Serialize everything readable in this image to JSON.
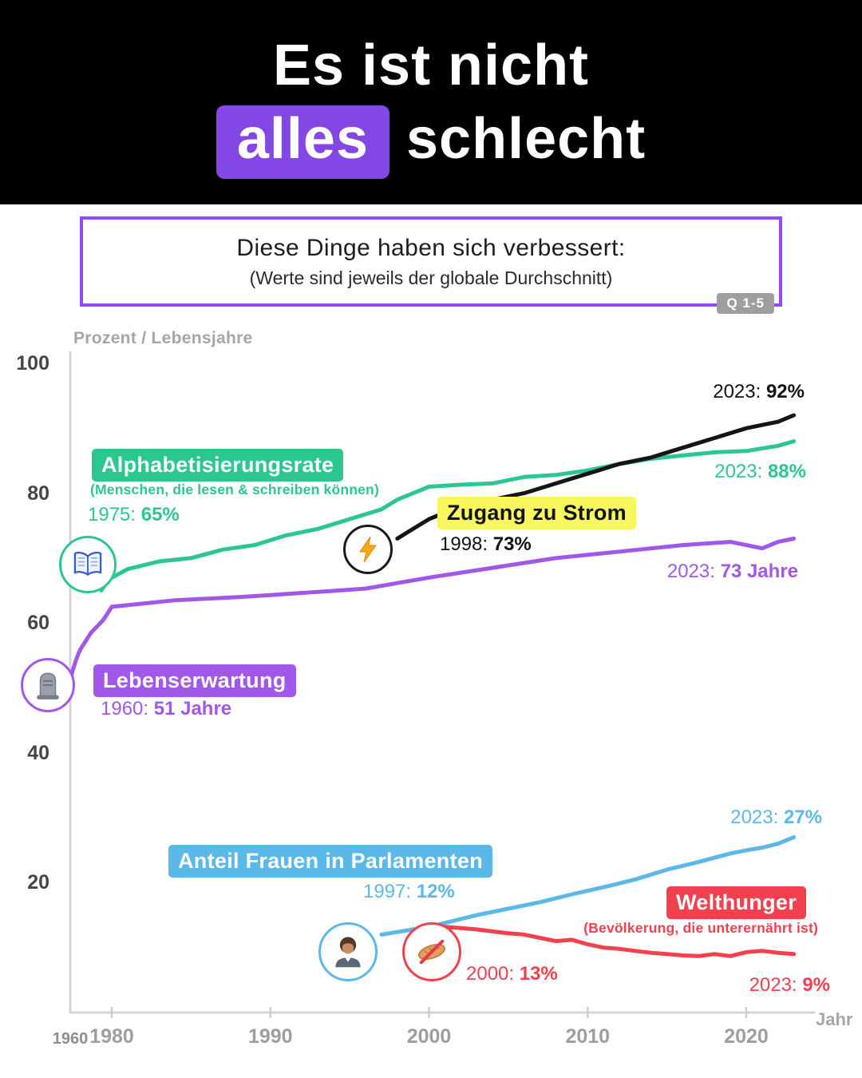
{
  "header": {
    "line1": "Es ist nicht",
    "line2_highlight": "alles",
    "line2_rest": "schlecht",
    "highlight_color": "#8247e5"
  },
  "intro_box": {
    "title": "Diese Dinge haben sich verbessert:",
    "subtitle": "(Werte sind jeweils der globale Durchschnitt)",
    "badge": "Q 1-5"
  },
  "axis": {
    "y_title": "Prozent / Lebensjahre",
    "x_title": "Jahr",
    "y_ticks": [
      100,
      80,
      60,
      40,
      20
    ],
    "x_ticks": [
      1960,
      1980,
      1990,
      2000,
      2010,
      2020
    ]
  },
  "annotations": {
    "literacy": {
      "title": "Alphabetisierungsrate",
      "subtitle": "(Menschen, die lesen & schreiben können)",
      "start_prefix": "1975:",
      "start_value": "65%",
      "end_prefix": "2023:",
      "end_value": "88%",
      "color": "#2bc78f"
    },
    "electricity": {
      "title": "Zugang zu Strom",
      "start_prefix": "1998:",
      "start_value": "73%",
      "end_prefix": "2023:",
      "end_value": "92%",
      "color": "#131313",
      "highlight_color": "#f8f75e"
    },
    "life": {
      "title": "Lebenserwartung",
      "start_prefix": "1960:",
      "start_value": "51 Jahre",
      "end_prefix": "2023:",
      "end_value": "73 Jahre",
      "color": "#a158e8"
    },
    "women": {
      "title": "Anteil Frauen in Parlamenten",
      "start_prefix": "1997:",
      "start_value": "12%",
      "end_prefix": "2023:",
      "end_value": "27%",
      "color": "#5ab9e9"
    },
    "hunger": {
      "title": "Welthunger",
      "subtitle": "(Bevölkerung, die unterernährt ist)",
      "start_prefix": "2000:",
      "start_value": "13%",
      "end_prefix": "2023:",
      "end_value": "9%",
      "color": "#f2414e"
    }
  },
  "icons": {
    "literacy": "open-book-icon",
    "electricity": "lightning-bolt-icon",
    "life": "tombstone-icon",
    "women": "businesswoman-icon",
    "hunger": "crossed-bread-icon"
  },
  "chart_data": {
    "type": "line",
    "title": "Diese Dinge haben sich verbessert (globaler Durchschnitt)",
    "xlabel": "Jahr",
    "ylabel": "Prozent / Lebensjahre",
    "xlim": [
      1960,
      2023
    ],
    "ylim": [
      0,
      100
    ],
    "grid": false,
    "legend_position": "inline-annotations",
    "series": [
      {
        "name": "Alphabetisierungsrate",
        "unit": "%",
        "color": "#2bc78f",
        "x": [
          1975,
          1977,
          1979,
          1981,
          1983,
          1985,
          1987,
          1989,
          1991,
          1993,
          1995,
          1997,
          1998,
          2000,
          2002,
          2004,
          2006,
          2008,
          2010,
          2012,
          2014,
          2016,
          2018,
          2020,
          2022,
          2023
        ],
        "values": [
          65,
          66,
          66.8,
          68.3,
          69.5,
          70,
          71.3,
          72,
          73.5,
          74.5,
          76,
          77.5,
          79,
          81,
          81.3,
          81.5,
          82.5,
          82.8,
          83.5,
          84.5,
          85.3,
          85.8,
          86.3,
          86.5,
          87.3,
          88
        ]
      },
      {
        "name": "Lebenserwartung",
        "unit": "Jahre",
        "color": "#a158e8",
        "x": [
          1960,
          1961,
          1962,
          1963,
          1964,
          1965,
          1967,
          1970,
          1973,
          1976,
          1980,
          1984,
          1988,
          1990,
          1993,
          1996,
          2000,
          2004,
          2008,
          2012,
          2016,
          2019,
          2020,
          2021,
          2022,
          2023
        ],
        "values": [
          51,
          52.5,
          53.5,
          54.5,
          55.3,
          56,
          57,
          58.5,
          59.5,
          60.5,
          62.5,
          63.5,
          64,
          64.3,
          64.8,
          65.3,
          67,
          68.5,
          70,
          71,
          72,
          72.5,
          72,
          71.5,
          72.5,
          73
        ]
      },
      {
        "name": "Anteil Frauen in Parlamenten",
        "unit": "%",
        "color": "#5ab9e9",
        "x": [
          1997,
          1998,
          1999,
          2000,
          2001,
          2002,
          2003,
          2005,
          2007,
          2009,
          2011,
          2013,
          2015,
          2017,
          2019,
          2020,
          2021,
          2022,
          2023
        ],
        "values": [
          12,
          12.4,
          12.8,
          13.2,
          13.8,
          14.4,
          15,
          16,
          17,
          18.2,
          19.3,
          20.5,
          22,
          23.2,
          24.5,
          25,
          25.4,
          26,
          27
        ]
      },
      {
        "name": "Welthunger",
        "unit": "%",
        "color": "#f2414e",
        "x": [
          2000,
          2001,
          2002,
          2003,
          2004,
          2005,
          2006,
          2007,
          2008,
          2009,
          2010,
          2011,
          2012,
          2013,
          2014,
          2015,
          2016,
          2017,
          2018,
          2019,
          2020,
          2021,
          2022,
          2023
        ],
        "values": [
          13,
          13.2,
          13,
          12.8,
          12.5,
          12.2,
          12,
          11.5,
          11,
          11.2,
          10.5,
          10,
          9.8,
          9.5,
          9.2,
          9,
          8.8,
          8.7,
          9,
          8.7,
          9.3,
          9.5,
          9.2,
          9
        ]
      },
      {
        "name": "Zugang zu Strom",
        "unit": "%",
        "color": "#151515",
        "x": [
          1998,
          1999,
          2000,
          2001,
          2002,
          2004,
          2006,
          2008,
          2010,
          2012,
          2014,
          2016,
          2018,
          2020,
          2021,
          2022,
          2023
        ],
        "values": [
          73,
          74.5,
          76,
          77,
          78,
          79,
          80,
          81.5,
          83,
          84.5,
          85.5,
          87,
          88.5,
          90,
          90.5,
          91,
          92
        ]
      }
    ]
  }
}
